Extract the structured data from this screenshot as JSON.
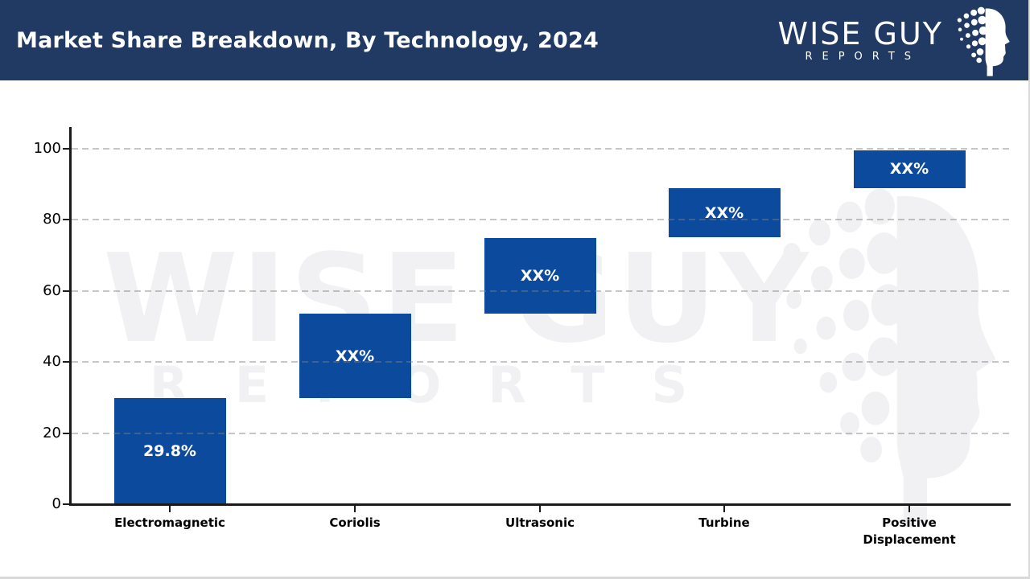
{
  "header": {
    "title": "Market Share Breakdown, By Technology, 2024",
    "background_color": "#213a64",
    "logo": {
      "line1": "WISE GUY",
      "line2": "REPORTS"
    }
  },
  "watermark": {
    "line1": "WISE GUY",
    "line2": "REPORTS"
  },
  "chart_data": {
    "type": "bar",
    "subtype": "waterfall-stacked-segments",
    "title": "Market Share Breakdown, By Technology, 2024",
    "categories": [
      "Electromagnetic",
      "Coriolis",
      "Ultrasonic",
      "Turbine",
      "Positive Displacement"
    ],
    "segments": [
      {
        "category": "Electromagnetic",
        "start": 0,
        "end": 29.8,
        "label": "29.8%"
      },
      {
        "category": "Coriolis",
        "start": 29.8,
        "end": 53.6,
        "label": "XX%"
      },
      {
        "category": "Ultrasonic",
        "start": 53.6,
        "end": 75.0,
        "label": "XX%"
      },
      {
        "category": "Turbine",
        "start": 75.0,
        "end": 89.0,
        "label": "XX%"
      },
      {
        "category": "Positive Displacement",
        "start": 89.0,
        "end": 99.5,
        "label": "XX%"
      }
    ],
    "xlabel": "",
    "ylabel": "",
    "ylim": [
      0,
      106
    ],
    "yticks": [
      0,
      20,
      40,
      60,
      80,
      100
    ],
    "grid": "horizontal-dashed",
    "legend": "none",
    "bar_color": "#0c4a9d",
    "bar_label_color": "#ffffff"
  }
}
